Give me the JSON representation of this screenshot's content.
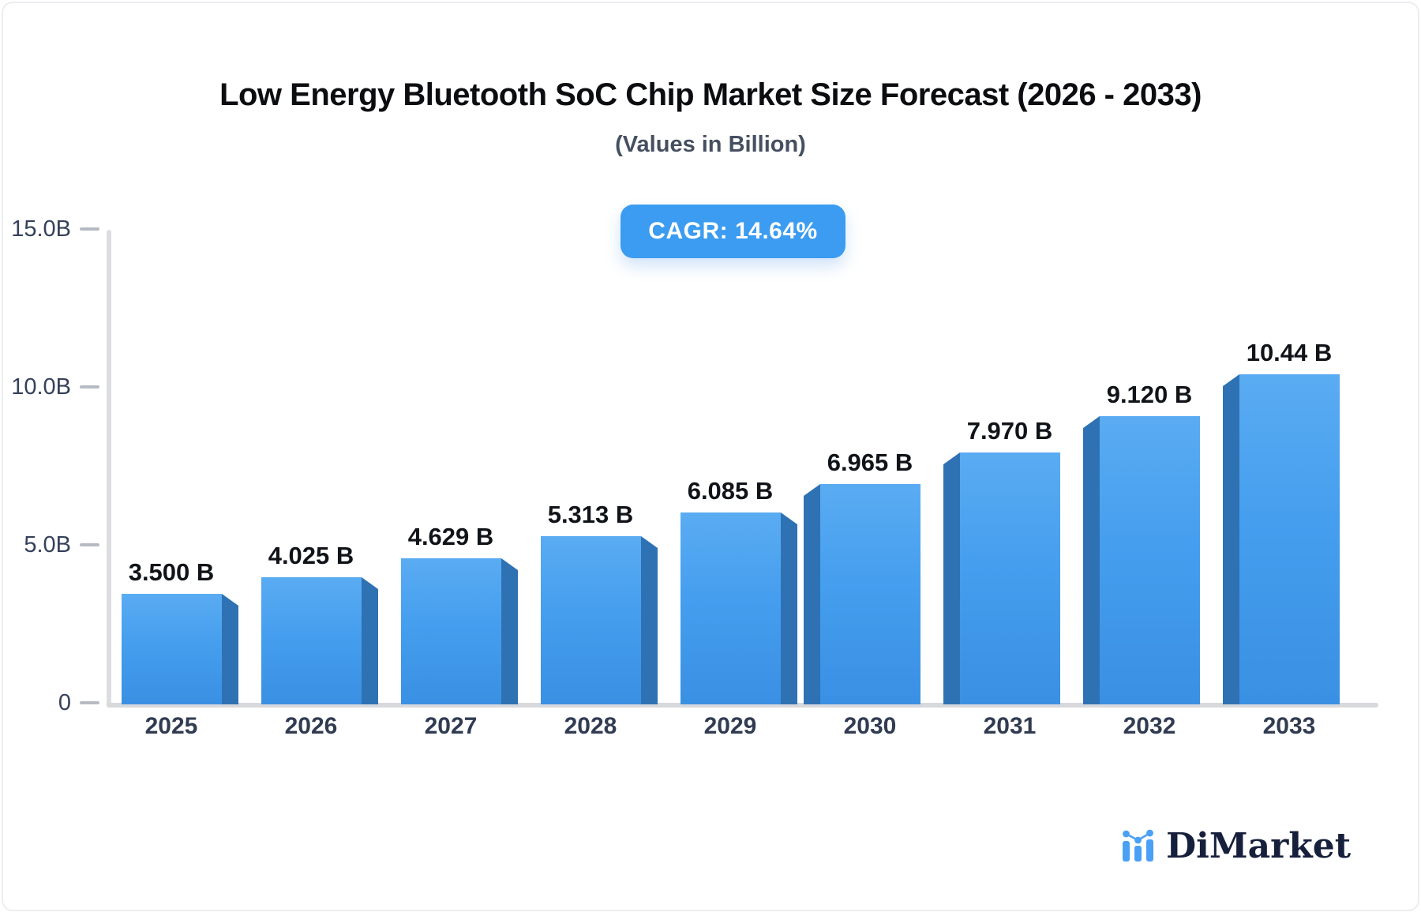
{
  "chart_data": {
    "type": "bar",
    "title": "Low Energy Bluetooth SoC Chip Market Size Forecast (2026 - 2033)",
    "subtitle": "(Values in Billion)",
    "cagr_badge": "CAGR: 14.64%",
    "categories": [
      "2025",
      "2026",
      "2027",
      "2028",
      "2029",
      "2030",
      "2031",
      "2032",
      "2033"
    ],
    "values": [
      3.5,
      4.025,
      4.629,
      5.313,
      6.085,
      6.965,
      7.97,
      9.12,
      10.44
    ],
    "value_labels": [
      "3.500 B",
      "4.025 B",
      "4.629 B",
      "5.313 B",
      "6.085 B",
      "6.965 B",
      "7.970 B",
      "9.120 B",
      "10.44 B"
    ],
    "unit": "Billion",
    "xlabel": "",
    "ylabel": "",
    "ylim": [
      0,
      15
    ],
    "yticks": [
      {
        "v": 0,
        "label": "0"
      },
      {
        "v": 5,
        "label": "5.0B"
      },
      {
        "v": 10,
        "label": "10.0B"
      },
      {
        "v": 15,
        "label": "15.0B"
      }
    ],
    "grid": false,
    "legend": "none",
    "bar_style": "3d-perspective",
    "colors": {
      "bar_face_top": "#5aacf2",
      "bar_face_bottom": "#3a90e3",
      "bar_side": "#2e72b4",
      "badge_bg": "#3b9cf1",
      "badge_text": "#ffffff",
      "axis_line": "#dcdde1",
      "tick_text": "#35415a",
      "value_text": "#101318"
    }
  },
  "branding": {
    "logo_text": "DiMarket",
    "logo_icon": "mini-bar-line-chart-icon",
    "logo_icon_color": "#4aa0f5",
    "logo_text_color": "#16203c"
  }
}
